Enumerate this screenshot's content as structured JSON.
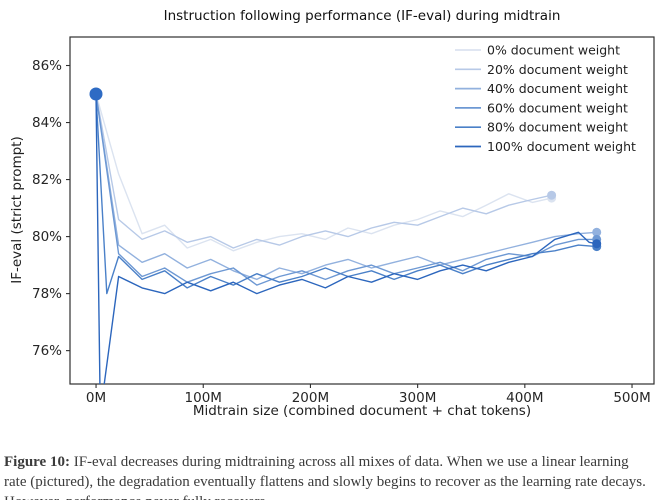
{
  "chart_data": {
    "type": "line",
    "title": "Instruction following performance (IF-eval) during midtrain",
    "xlabel": "Midtrain size (combined document + chat tokens)",
    "ylabel": "IF-eval (strict prompt)",
    "grid": false,
    "legend_position": "upper right",
    "xlim": [
      -24.3,
      520.5
    ],
    "ylim": [
      74.83,
      87.0
    ],
    "x_ticks": [
      {
        "value": 0,
        "label": "0M"
      },
      {
        "value": 100,
        "label": "100M"
      },
      {
        "value": 200,
        "label": "200M"
      },
      {
        "value": 300,
        "label": "300M"
      },
      {
        "value": 400,
        "label": "400M"
      },
      {
        "value": 500,
        "label": "500M"
      }
    ],
    "y_ticks": [
      {
        "value": 76,
        "label": "76%"
      },
      {
        "value": 78,
        "label": "78%"
      },
      {
        "value": 80,
        "label": "80%"
      },
      {
        "value": 82,
        "label": "82%"
      },
      {
        "value": 84,
        "label": "84%"
      },
      {
        "value": 86,
        "label": "86%"
      }
    ],
    "start_marker": {
      "x": 0,
      "y": 85.0,
      "color": "#2e6bc4"
    },
    "series": [
      {
        "name": "0% document weight",
        "color": "#dbe3f0",
        "x": [
          0,
          21,
          43,
          64,
          85,
          107,
          128,
          150,
          171,
          192,
          214,
          235,
          257,
          278,
          300,
          321,
          342,
          364,
          385,
          407,
          425
        ],
        "y": [
          85.0,
          82.2,
          80.1,
          80.4,
          79.6,
          79.9,
          79.5,
          79.8,
          80.0,
          80.1,
          79.9,
          80.3,
          80.1,
          80.4,
          80.6,
          80.9,
          80.7,
          81.1,
          81.5,
          81.2,
          81.35
        ]
      },
      {
        "name": "20% document weight",
        "color": "#b7c9e7",
        "x": [
          0,
          21,
          43,
          64,
          85,
          107,
          128,
          150,
          171,
          192,
          214,
          235,
          257,
          278,
          300,
          321,
          342,
          364,
          385,
          407,
          425
        ],
        "y": [
          85.0,
          80.6,
          79.9,
          80.2,
          79.8,
          80.0,
          79.6,
          79.9,
          79.7,
          80.0,
          80.2,
          80.0,
          80.3,
          80.5,
          80.4,
          80.7,
          81.0,
          80.8,
          81.1,
          81.3,
          81.45
        ]
      },
      {
        "name": "40% document weight",
        "color": "#92b1de",
        "x": [
          0,
          21,
          43,
          64,
          85,
          107,
          128,
          150,
          171,
          192,
          214,
          235,
          257,
          278,
          300,
          321,
          342,
          364,
          385,
          407,
          428,
          450,
          467
        ],
        "y": [
          85.0,
          79.7,
          79.1,
          79.4,
          78.9,
          79.2,
          78.8,
          78.5,
          78.9,
          78.7,
          79.0,
          79.2,
          78.9,
          79.1,
          79.3,
          79.0,
          79.2,
          79.4,
          79.6,
          79.8,
          80.0,
          80.1,
          80.15
        ]
      },
      {
        "name": "60% document weight",
        "color": "#6d98d3",
        "x": [
          0,
          21,
          43,
          64,
          85,
          107,
          128,
          150,
          171,
          192,
          214,
          235,
          257,
          278,
          300,
          321,
          342,
          364,
          385,
          407,
          428,
          450,
          467
        ],
        "y": [
          85.0,
          79.4,
          78.6,
          78.9,
          78.4,
          78.7,
          78.9,
          78.3,
          78.6,
          78.8,
          78.5,
          78.8,
          79.0,
          78.7,
          78.9,
          79.1,
          78.8,
          79.2,
          79.4,
          79.3,
          79.7,
          79.9,
          79.9
        ]
      },
      {
        "name": "80% document weight",
        "color": "#4a80c8",
        "x": [
          0,
          10,
          21,
          43,
          64,
          85,
          107,
          128,
          150,
          171,
          192,
          214,
          235,
          257,
          278,
          300,
          321,
          342,
          364,
          385,
          407,
          428,
          450,
          467
        ],
        "y": [
          85.0,
          78.0,
          79.3,
          78.5,
          78.8,
          78.2,
          78.6,
          78.3,
          78.7,
          78.4,
          78.6,
          78.9,
          78.6,
          78.8,
          78.5,
          78.8,
          79.0,
          78.7,
          79.0,
          79.2,
          79.4,
          79.5,
          79.7,
          79.65
        ]
      },
      {
        "name": "100% document weight",
        "color": "#2c66bd",
        "x": [
          0,
          4,
          21,
          43,
          64,
          85,
          107,
          128,
          150,
          171,
          192,
          214,
          235,
          257,
          278,
          300,
          321,
          342,
          364,
          385,
          407,
          428,
          450,
          460,
          467
        ],
        "y": [
          85.0,
          73.8,
          78.6,
          78.2,
          78.0,
          78.4,
          78.1,
          78.4,
          78.0,
          78.3,
          78.5,
          78.2,
          78.6,
          78.4,
          78.7,
          78.5,
          78.8,
          79.0,
          78.8,
          79.1,
          79.3,
          79.9,
          80.15,
          79.8,
          79.75
        ]
      }
    ]
  },
  "caption": {
    "figure_label": "Figure 10:",
    "text": " IF-eval decreases during midtraining across all mixes of data. When we use a linear learning rate (pictured), the degradation eventually flattens and slowly begins to recover as the learning rate decays. However, performance never fully recovers."
  }
}
